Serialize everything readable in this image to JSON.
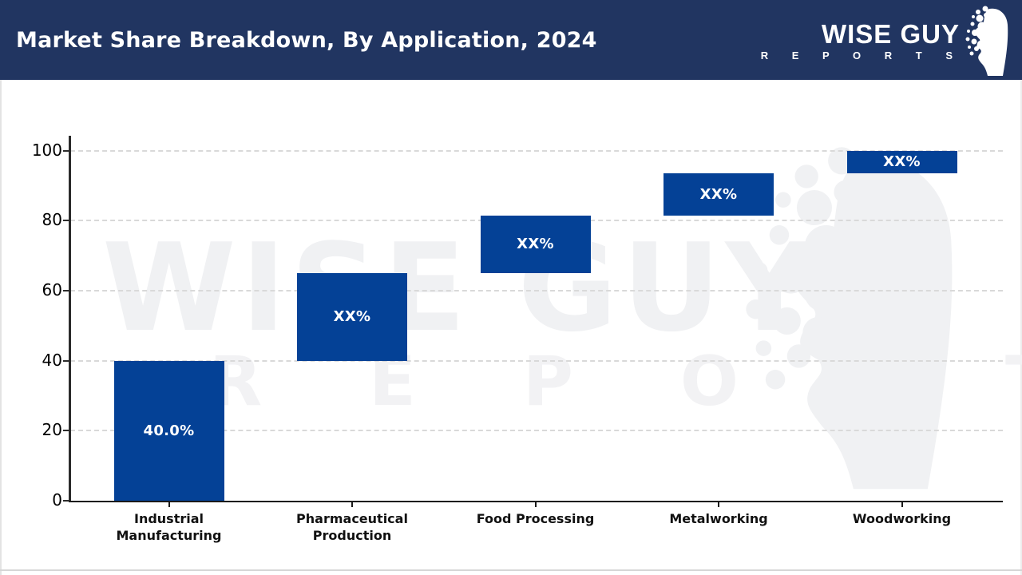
{
  "header": {
    "title": "Market Share Breakdown, By Application, 2024",
    "bg_color": "#213561",
    "logo": {
      "name": "WISE GUY",
      "sub": "R E P O R T S"
    }
  },
  "watermark": {
    "name": "WISE GUY",
    "sub": "R E P O R T S"
  },
  "chart_data": {
    "type": "bar",
    "subtype": "waterfall",
    "title": "Market Share Breakdown, By Application, 2024",
    "categories": [
      "Industrial Manufacturing",
      "Pharmaceutical Production",
      "Food Processing",
      "Metalworking",
      "Woodworking"
    ],
    "bars": [
      {
        "category": "Industrial Manufacturing",
        "start": 0,
        "end": 40,
        "size": 40,
        "label": "40.0%"
      },
      {
        "category": "Pharmaceutical Production",
        "start": 40,
        "end": 65,
        "size": 25,
        "label": "XX%"
      },
      {
        "category": "Food Processing",
        "start": 65,
        "end": 81.5,
        "size": 16.5,
        "label": "XX%"
      },
      {
        "category": "Metalworking",
        "start": 81.5,
        "end": 93.5,
        "size": 12,
        "label": "XX%"
      },
      {
        "category": "Woodworking",
        "start": 93.5,
        "end": 100,
        "size": 6.5,
        "label": "XX%"
      }
    ],
    "yticks": [
      0,
      20,
      40,
      60,
      80,
      100
    ],
    "ylim": [
      0,
      104
    ],
    "grid": true,
    "grid_style": "dashed",
    "grid_color": "#d9d9d9",
    "bar_color": "#044196",
    "bar_label_color": "#ffffff",
    "axis_color": "#1a1a1a",
    "legend": "none"
  }
}
